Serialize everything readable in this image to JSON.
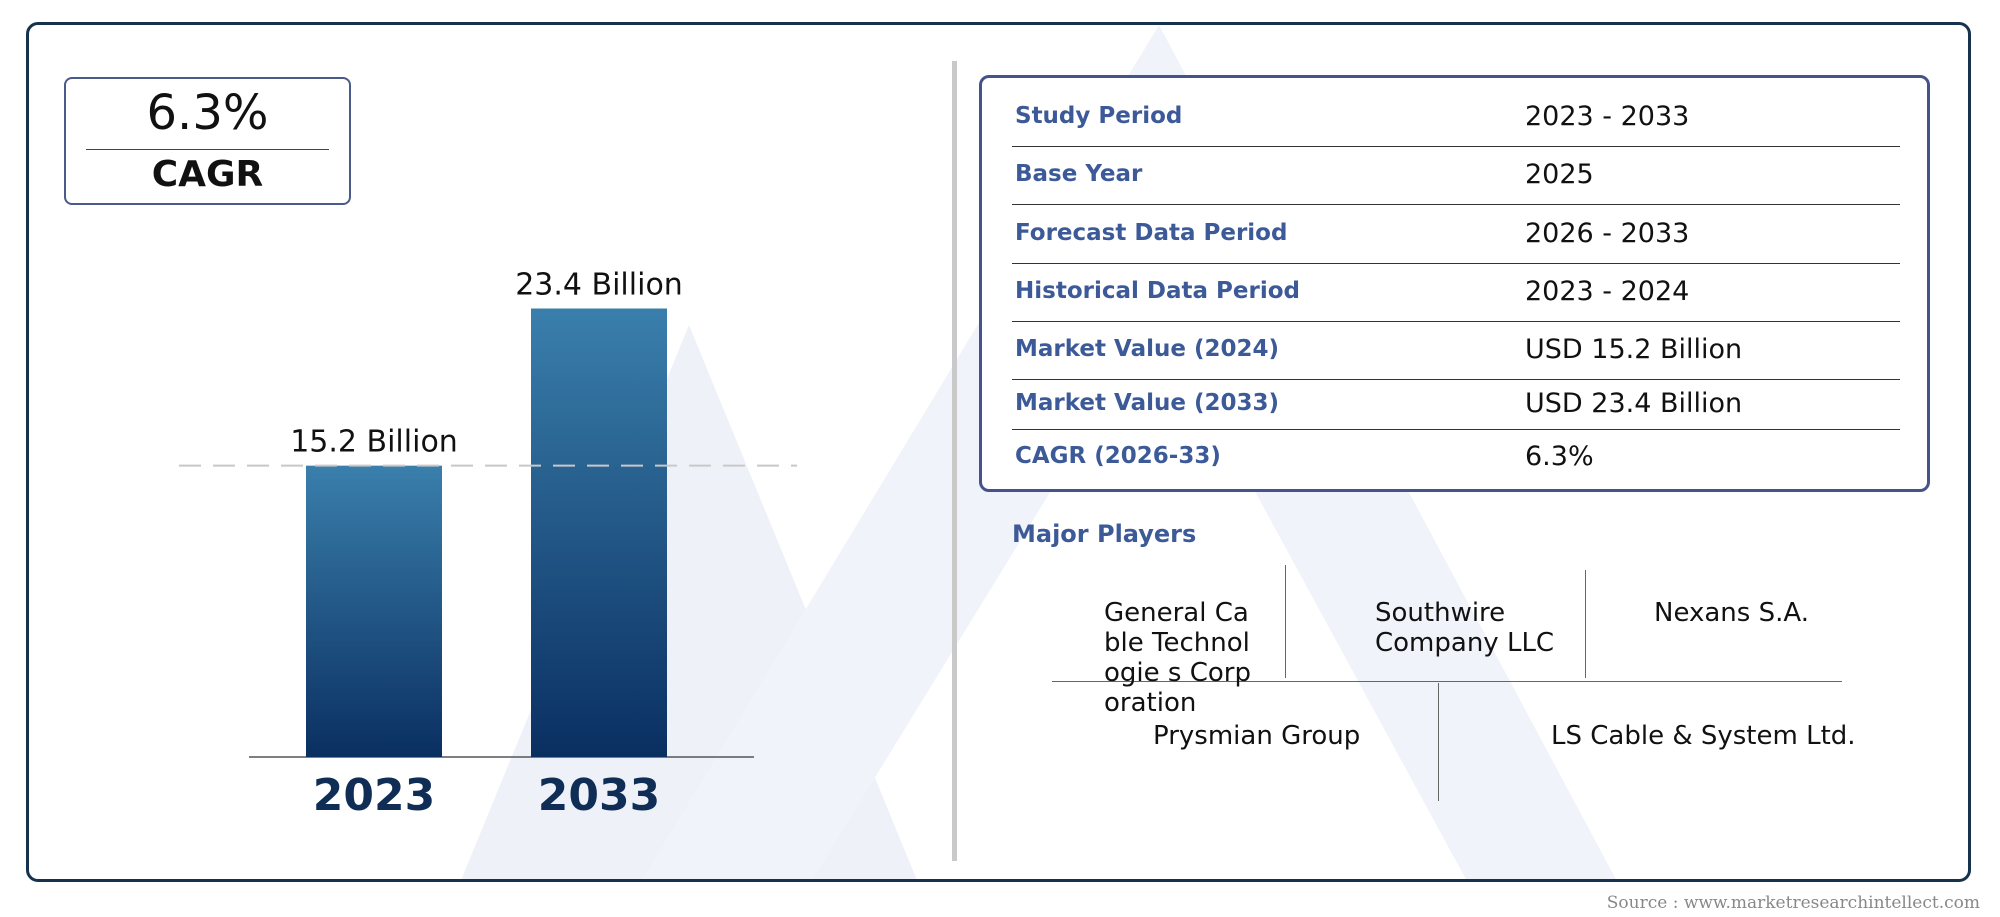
{
  "cagr_box": {
    "value": "6.3%",
    "label": "CAGR"
  },
  "chart_data": {
    "type": "bar",
    "categories": [
      "2023",
      "2033"
    ],
    "values": [
      15.2,
      23.4
    ],
    "value_labels": [
      "15.2 Billion",
      "23.4 Billion"
    ],
    "title": "",
    "xlabel": "",
    "ylabel": "",
    "ylim": [
      0,
      30
    ],
    "grid": false,
    "reference_line": {
      "value": 15.2,
      "style": "dashed"
    },
    "colors": {
      "bar_top": "#3a7fac",
      "bar_bottom": "#0a2f61",
      "category_text": "#0f2d55"
    }
  },
  "info_table": {
    "rows": [
      {
        "label": "Study Period",
        "value": "2023 - 2033"
      },
      {
        "label": "Base Year",
        "value": "2025"
      },
      {
        "label": "Forecast Data Period",
        "value": "2026 - 2033"
      },
      {
        "label": "Historical Data Period",
        "value": "2023 - 2024"
      },
      {
        "label": "Market Value (2024)",
        "value": "USD 15.2 Billion"
      },
      {
        "label": "Market Value (2033)",
        "value": "USD 23.4 Billion"
      },
      {
        "label": "CAGR (2026-33)",
        "value": "6.3%"
      }
    ]
  },
  "players": {
    "title": "Major Players",
    "items": [
      "General Cable Technologie s Corporation",
      "Southwire Company LLC",
      "Nexans S.A.",
      "Prysmian Group",
      "LS Cable & System Ltd."
    ]
  },
  "source": "Source : www.marketresearchintellect.com",
  "colors": {
    "frame": "#17324d",
    "accent": "#3d5a98",
    "watermark": "#eef2f8"
  }
}
